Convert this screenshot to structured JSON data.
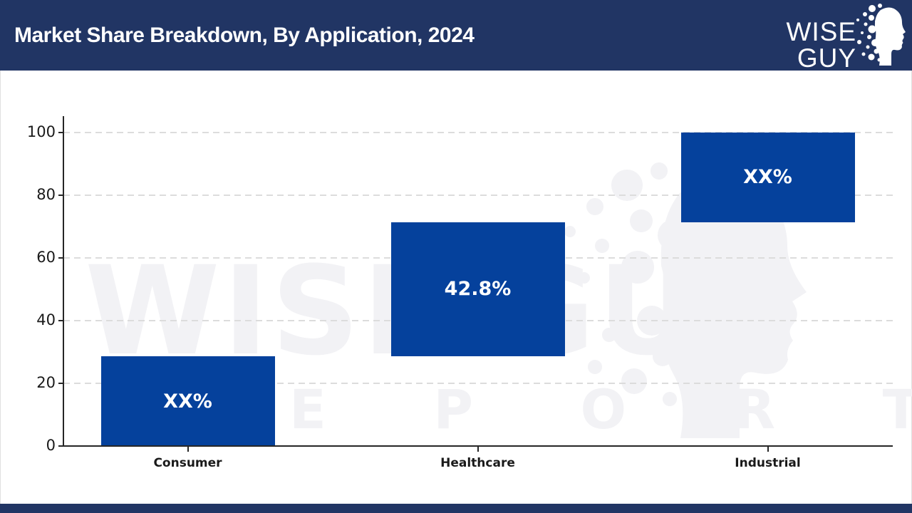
{
  "header": {
    "title": "Market Share Breakdown, By Application, 2024",
    "bg_color": "#213564",
    "brand": {
      "name": "WISE GUY",
      "subtitle": "REPORTS"
    }
  },
  "watermark": {
    "wordmark": "WISE GUY",
    "subtitle": "R E P O R T S"
  },
  "footer": {
    "bg_color": "#213564"
  },
  "chart_data": {
    "type": "bar",
    "variant": "floating-stacked-percentage",
    "title": "Market Share Breakdown, By Application, 2024",
    "categories": [
      "Consumer",
      "Healthcare",
      "Industrial"
    ],
    "series": [
      {
        "name": "Market share by application",
        "bases": [
          0,
          28.6,
          71.4
        ],
        "values": [
          28.6,
          42.8,
          28.6
        ],
        "labels": [
          "XX%",
          "42.8%",
          "XX%"
        ]
      }
    ],
    "xlabel": "",
    "ylabel": "",
    "ylim": [
      0,
      100
    ],
    "yticks": [
      0,
      20,
      40,
      60,
      80,
      100
    ],
    "grid": "dashed-horizontal",
    "legend": "none",
    "bar_color": "#05419c",
    "bar_label_color": "#ffffff",
    "axis_color": "#262626",
    "grid_color": "#dcdcdc",
    "tick_label_color": "#1a1a1a"
  }
}
